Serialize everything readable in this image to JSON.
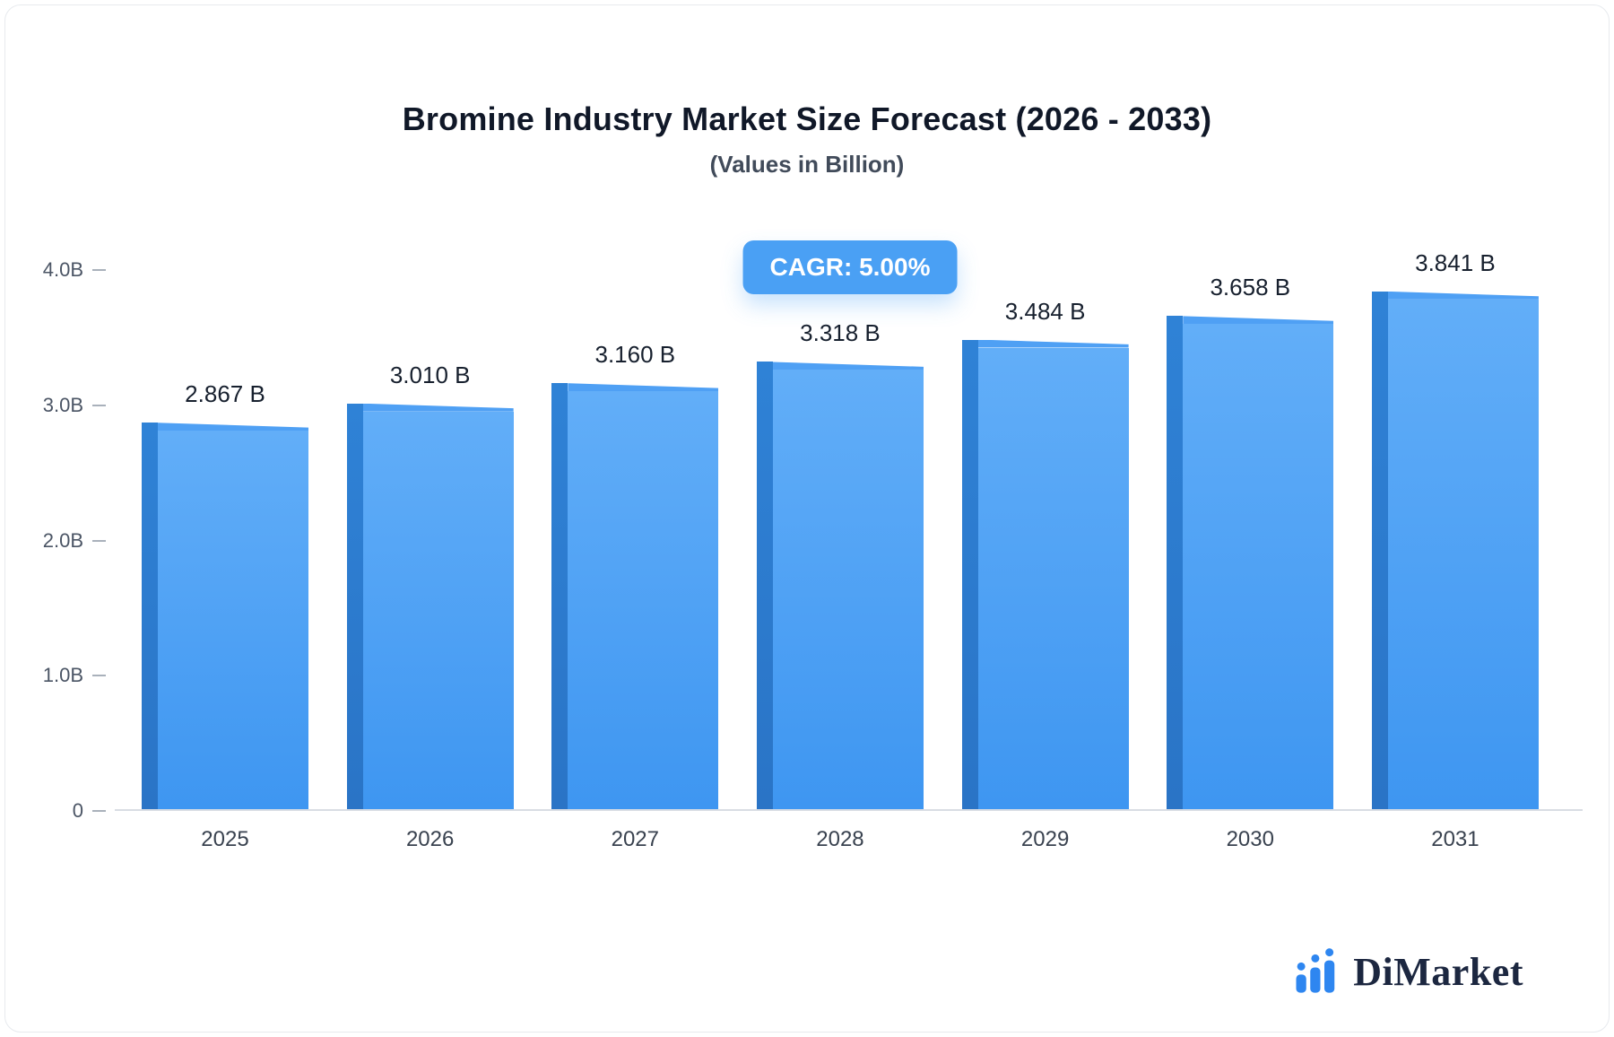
{
  "header": {
    "title": "Bromine Industry Market Size Forecast (2026 - 2033)",
    "subtitle": "(Values in Billion)"
  },
  "badge": {
    "label": "CAGR: 5.00%",
    "background": "#4aa0f4",
    "text_color": "#ffffff"
  },
  "chart_data": {
    "type": "bar",
    "title": "Bromine Industry Market Size Forecast (2026 - 2033)",
    "subtitle": "(Values in Billion)",
    "annotation": "CAGR: 5.00%",
    "categories": [
      "2025",
      "2026",
      "2027",
      "2028",
      "2029",
      "2030",
      "2031"
    ],
    "values": [
      2.867,
      3.01,
      3.16,
      3.318,
      3.484,
      3.658,
      3.841
    ],
    "value_labels": [
      "2.867 B",
      "3.010 B",
      "3.160 B",
      "3.318 B",
      "3.484 B",
      "3.658 B",
      "3.841 B"
    ],
    "unit": "B",
    "xlabel": "",
    "ylabel": "",
    "ylim": [
      0,
      4
    ],
    "grid": false,
    "legend": false,
    "y_ticks": [
      {
        "value": 0,
        "label": "0"
      },
      {
        "value": 1,
        "label": "1.0B"
      },
      {
        "value": 2,
        "label": "2.0B"
      },
      {
        "value": 3,
        "label": "3.0B"
      },
      {
        "value": 4,
        "label": "4.0B"
      }
    ],
    "colors": {
      "front_top": "#62aef8",
      "front_bottom": "#3e96f1",
      "side_top": "#2f82d6",
      "side_bottom": "#2a74c6",
      "bevel": "#4fa0f4",
      "axis": "#d9dde3",
      "tick": "#a9b1bb"
    }
  },
  "footer": {
    "brand": "DiMarket",
    "logo_icon": "bar-chart-icon",
    "brand_color": "#1c2740",
    "icon_color": "#2e86f0"
  }
}
